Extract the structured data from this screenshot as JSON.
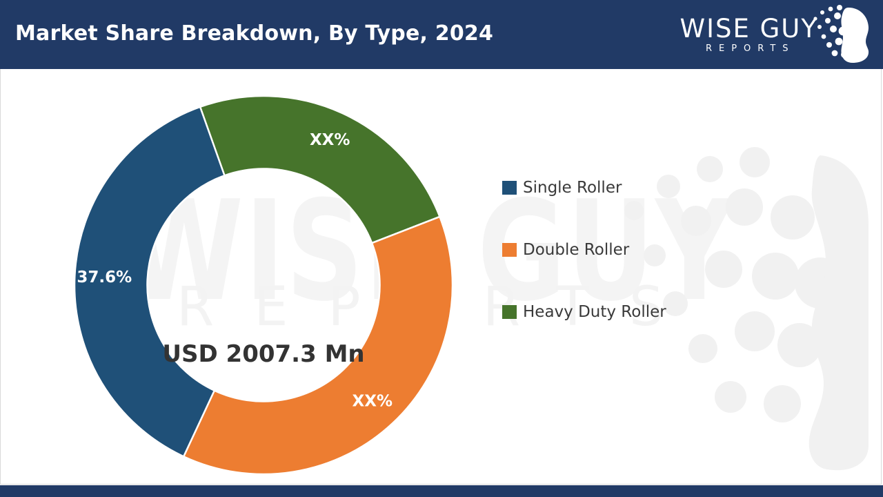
{
  "header": {
    "title": "Market Share Breakdown, By Type, 2024",
    "bg_color": "#213A66",
    "logo": {
      "line1": "WISE GUY",
      "line2": "REPORTS"
    }
  },
  "watermark": {
    "text_top": "WISE GUY",
    "text_bottom": "REPORTS"
  },
  "footer": {
    "bar_color": "#213A66"
  },
  "chart_data": {
    "type": "pie",
    "variant": "donut",
    "title": "Market Share Breakdown, By Type, 2024",
    "center_label": "USD 2007.3 Mn",
    "start_angle_deg": -19.6,
    "direction": "clockwise",
    "inner_radius_ratio": 0.615,
    "segments": [
      {
        "label": "Heavy Duty Roller",
        "display_value": "XX%",
        "sweep_deg": 88.4,
        "pct_estimate": 24.6,
        "color": "#46742B"
      },
      {
        "label": "Double Roller",
        "display_value": "XX%",
        "sweep_deg": 136.2,
        "pct_estimate": 37.8,
        "color": "#ED7D31"
      },
      {
        "label": "Single Roller",
        "display_value": "37.6%",
        "sweep_deg": 135.4,
        "pct_estimate": 37.6,
        "color": "#1F5078"
      }
    ],
    "legend": [
      {
        "label": "Single Roller",
        "color": "#1F5078"
      },
      {
        "label": "Double Roller",
        "color": "#ED7D31"
      },
      {
        "label": "Heavy Duty Roller",
        "color": "#46742B"
      }
    ],
    "legend_position": "right"
  }
}
